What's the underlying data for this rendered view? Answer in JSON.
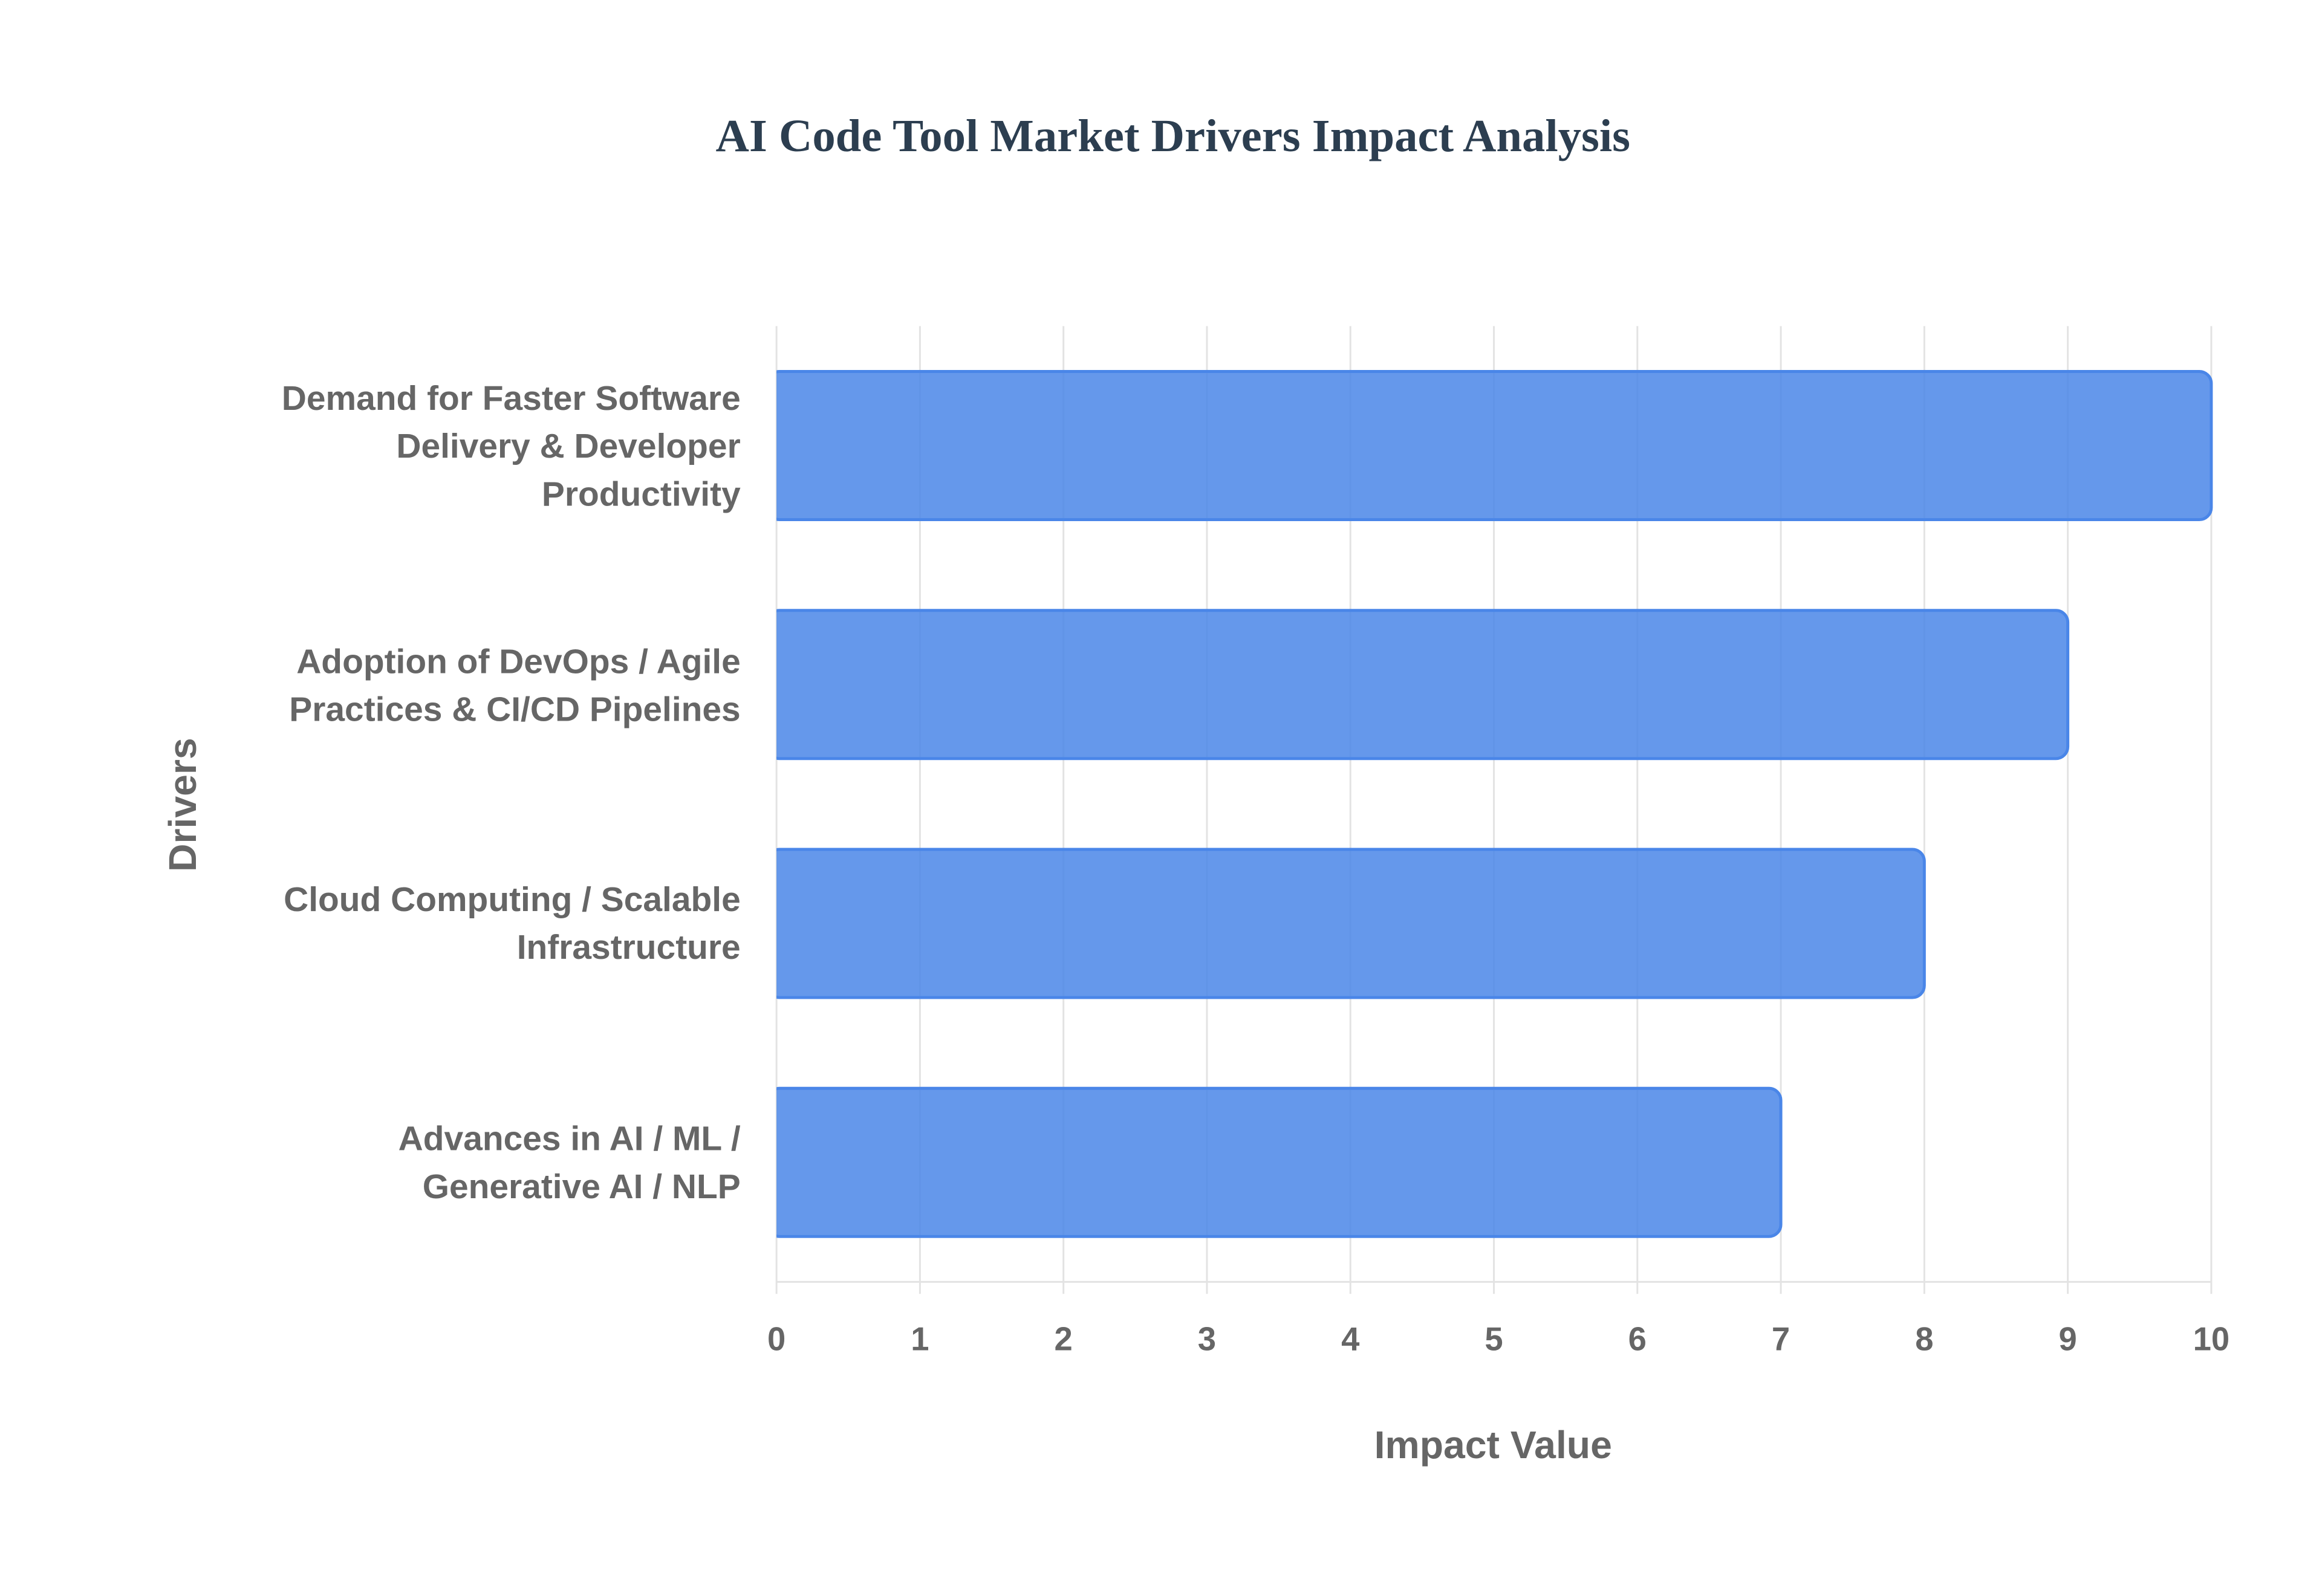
{
  "chart_data": {
    "type": "bar",
    "orientation": "horizontal",
    "title": "AI Code Tool Market Drivers Impact Analysis",
    "x_label": "Impact Value",
    "y_label": "Drivers",
    "categories": [
      "Demand for Faster Software Delivery & Developer Productivity",
      "Adoption of DevOps / Agile Practices & CI/CD Pipelines",
      "Cloud Computing / Scalable Infrastructure",
      "Advances in AI / ML / Generative AI / NLP"
    ],
    "values": [
      10,
      9,
      8,
      7
    ],
    "color": "#4a86e8",
    "xlim": [
      0,
      10
    ],
    "xticks": [
      0,
      1,
      2,
      3,
      4,
      5,
      6,
      7,
      8,
      9,
      10
    ],
    "grid": true
  }
}
